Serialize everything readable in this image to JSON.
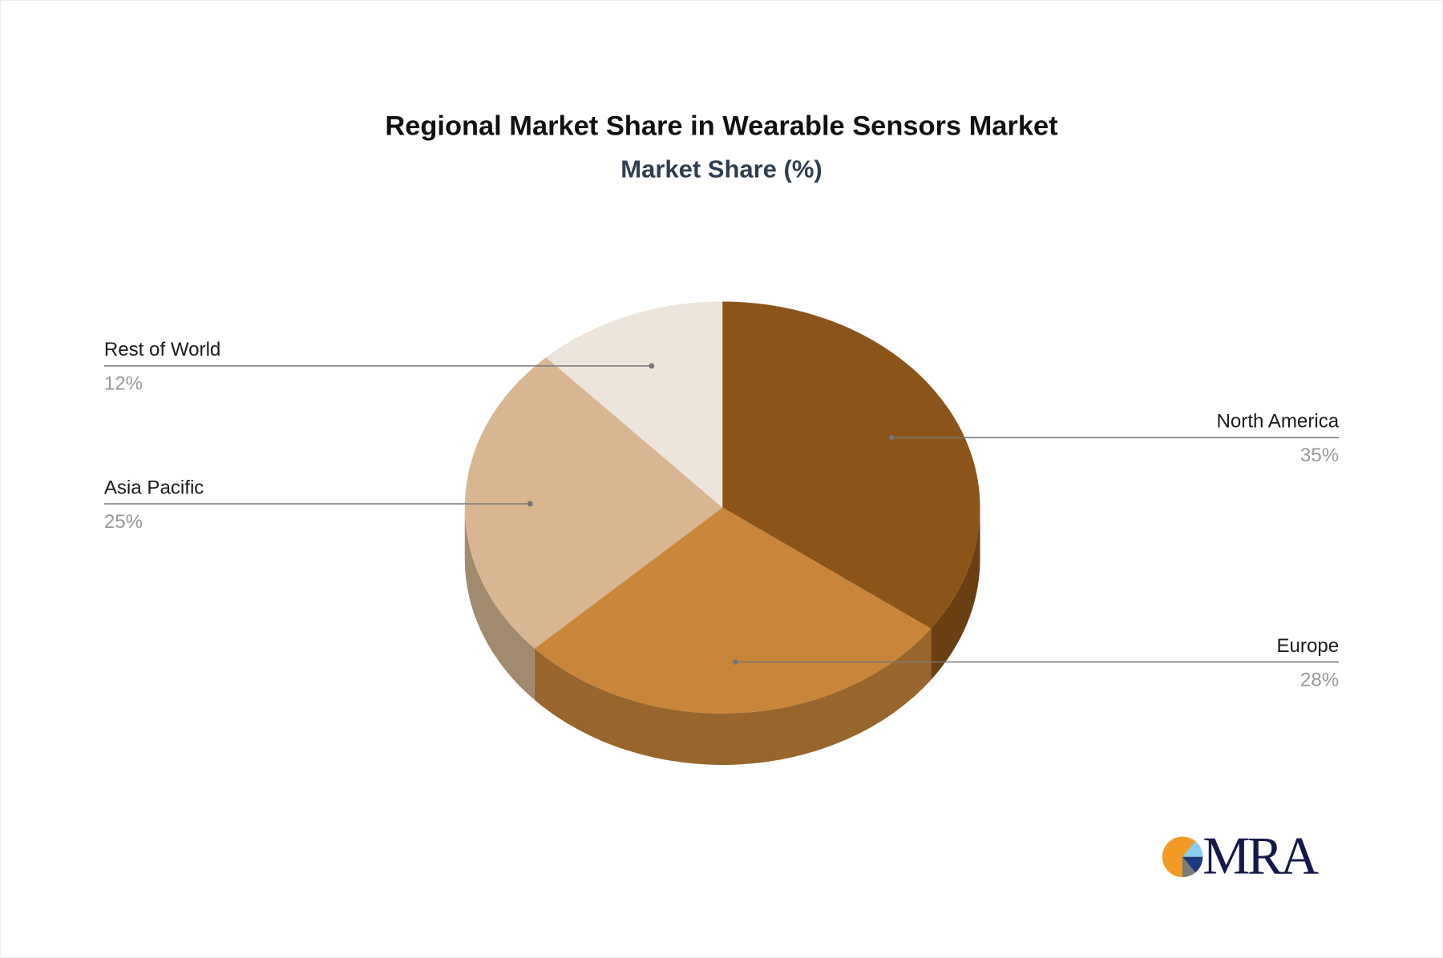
{
  "chart_data": {
    "type": "pie",
    "style": "3d",
    "title": "Regional Market Share in Wearable Sensors Market",
    "subtitle": "Market Share (%)",
    "categories": [
      "North America",
      "Europe",
      "Asia Pacific",
      "Rest of World"
    ],
    "values": [
      35,
      28,
      25,
      12
    ],
    "labels": [
      "35%",
      "28%",
      "25%",
      "12%"
    ],
    "colors": [
      "#8B5419",
      "#C9863A",
      "#D8B692",
      "#EDE4DB"
    ],
    "side_colors": [
      "#6A3F12",
      "#98662C",
      "#A28A6E",
      "#B8ADA3"
    ]
  },
  "logo": {
    "text": "MRA",
    "colors": [
      "#F39A26",
      "#87CEF0",
      "#1C3A80",
      "#7A7A7A"
    ]
  }
}
